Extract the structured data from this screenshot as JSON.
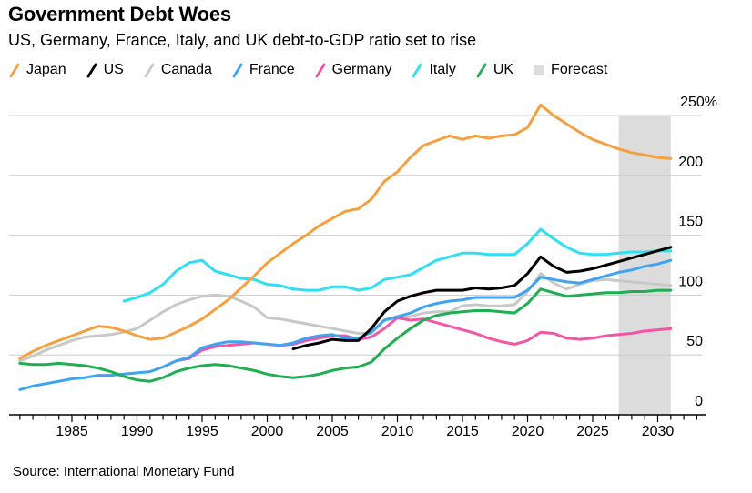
{
  "header": {
    "title": "Government Debt Woes",
    "subtitle": "US, Germany, France, Italy, and UK debt-to-GDP ratio set to rise"
  },
  "source": "Source: International Monetary Fund",
  "colors": {
    "japan": "#F5A03C",
    "us": "#000000",
    "canada": "#C8C8C8",
    "france": "#3EA3F1",
    "germany": "#F355A4",
    "italy": "#2FDFF3",
    "uk": "#1EAF50",
    "forecast_band": "#DCDCDC",
    "gridline": "#CBCBCB",
    "axis": "#000000"
  },
  "chart_data": {
    "type": "line",
    "unit": "% of GDP",
    "x_axis": {
      "start": 1981,
      "end": 2031,
      "minor_tick_every": 1,
      "tick_first": 1981,
      "tick_last": 2033,
      "major_tick_years": [
        1985,
        1990,
        1995,
        2000,
        2005,
        2010,
        2015,
        2020,
        2025,
        2030
      ]
    },
    "y_axis": {
      "min": 0,
      "max": 250,
      "tick_step": 50,
      "position": "right",
      "tick_values": [
        0,
        50,
        100,
        150,
        200,
        250
      ],
      "tick_labels": [
        "0",
        "50",
        "100",
        "150",
        "200",
        "250%"
      ]
    },
    "forecast_band": {
      "start": 2027,
      "end": 2031,
      "label": "Forecast",
      "color": "#DCDCDC"
    },
    "legend": [
      {
        "label": "Japan",
        "glyph": "slash",
        "color": "#F5A03C"
      },
      {
        "label": "US",
        "glyph": "slash",
        "color": "#000000"
      },
      {
        "label": "Canada",
        "glyph": "slash",
        "color": "#C8C8C8"
      },
      {
        "label": "France",
        "glyph": "slash",
        "color": "#3EA3F1"
      },
      {
        "label": "Germany",
        "glyph": "slash",
        "color": "#F355A4"
      },
      {
        "label": "Italy",
        "glyph": "slash",
        "color": "#2FDFF3"
      },
      {
        "label": "UK",
        "glyph": "slash",
        "color": "#1EAF50"
      },
      {
        "label": "Forecast",
        "glyph": "square",
        "color": "#DCDCDC"
      }
    ],
    "series": [
      {
        "name": "Canada",
        "color": "#C8C8C8",
        "start_year": 1981,
        "values": [
          45,
          49,
          54,
          58,
          62,
          65,
          66,
          67,
          69,
          72,
          79,
          86,
          92,
          96,
          99,
          100,
          99,
          95,
          90,
          81,
          80,
          78,
          76,
          74,
          72,
          70,
          68,
          68,
          79,
          81,
          82,
          85,
          86,
          86,
          91,
          92,
          91,
          91,
          92,
          103,
          118,
          110,
          105,
          109,
          112,
          113,
          112,
          111,
          110,
          109,
          108
        ]
      },
      {
        "name": "Germany",
        "color": "#F355A4",
        "start_year": 1992,
        "values": [
          40,
          45,
          47,
          54,
          57,
          58,
          59,
          60,
          59,
          58,
          59,
          62,
          64,
          66,
          66,
          63,
          65,
          72,
          81,
          79,
          80,
          77,
          74,
          71,
          68,
          64,
          61,
          59,
          62,
          69,
          68,
          64,
          63,
          64,
          66,
          67,
          68,
          70,
          71,
          72
        ]
      },
      {
        "name": "France",
        "color": "#3EA3F1",
        "start_year": 1981,
        "values": [
          21,
          24,
          26,
          28,
          30,
          31,
          33,
          33,
          34,
          35,
          36,
          40,
          45,
          48,
          56,
          59,
          61,
          61,
          60,
          59,
          58,
          60,
          64,
          66,
          67,
          64,
          64,
          69,
          79,
          82,
          85,
          90,
          93,
          95,
          96,
          98,
          98,
          98,
          98,
          104,
          115,
          113,
          111,
          110,
          113,
          116,
          119,
          121,
          124,
          126,
          129
        ]
      },
      {
        "name": "UK",
        "color": "#1EAF50",
        "start_year": 1981,
        "values": [
          43,
          42,
          42,
          43,
          42,
          41,
          39,
          36,
          32,
          29,
          28,
          31,
          36,
          39,
          41,
          42,
          41,
          39,
          37,
          34,
          32,
          31,
          32,
          34,
          37,
          39,
          40,
          44,
          55,
          64,
          72,
          79,
          83,
          85,
          86,
          87,
          87,
          86,
          85,
          93,
          105,
          102,
          99,
          100,
          101,
          102,
          102,
          103,
          103,
          104,
          104
        ]
      },
      {
        "name": "Italy",
        "color": "#2FDFF3",
        "start_year": 1989,
        "values": [
          95,
          98,
          102,
          109,
          120,
          127,
          129,
          120,
          117,
          114,
          113,
          109,
          108,
          105,
          104,
          104,
          107,
          107,
          104,
          106,
          113,
          115,
          117,
          123,
          129,
          132,
          135,
          135,
          134,
          134,
          134,
          143,
          155,
          147,
          140,
          135,
          134,
          134,
          135,
          136,
          136,
          137,
          137
        ]
      },
      {
        "name": "Japan",
        "color": "#F5A03C",
        "start_year": 1981,
        "values": [
          47,
          53,
          58,
          62,
          66,
          70,
          74,
          73,
          70,
          66,
          63,
          64,
          69,
          74,
          80,
          88,
          96,
          106,
          116,
          127,
          135,
          143,
          150,
          158,
          164,
          170,
          172,
          180,
          195,
          203,
          215,
          225,
          229,
          233,
          230,
          233,
          231,
          233,
          234,
          240,
          259,
          250,
          243,
          236,
          230,
          226,
          222,
          219,
          217,
          215,
          214
        ]
      },
      {
        "name": "US",
        "color": "#000000",
        "start_year": 2002,
        "values": [
          55,
          58,
          60,
          63,
          62,
          62,
          72,
          86,
          95,
          99,
          102,
          104,
          104,
          104,
          106,
          105,
          106,
          108,
          118,
          132,
          124,
          119,
          120,
          122,
          125,
          128,
          131,
          134,
          137,
          140
        ]
      }
    ]
  }
}
